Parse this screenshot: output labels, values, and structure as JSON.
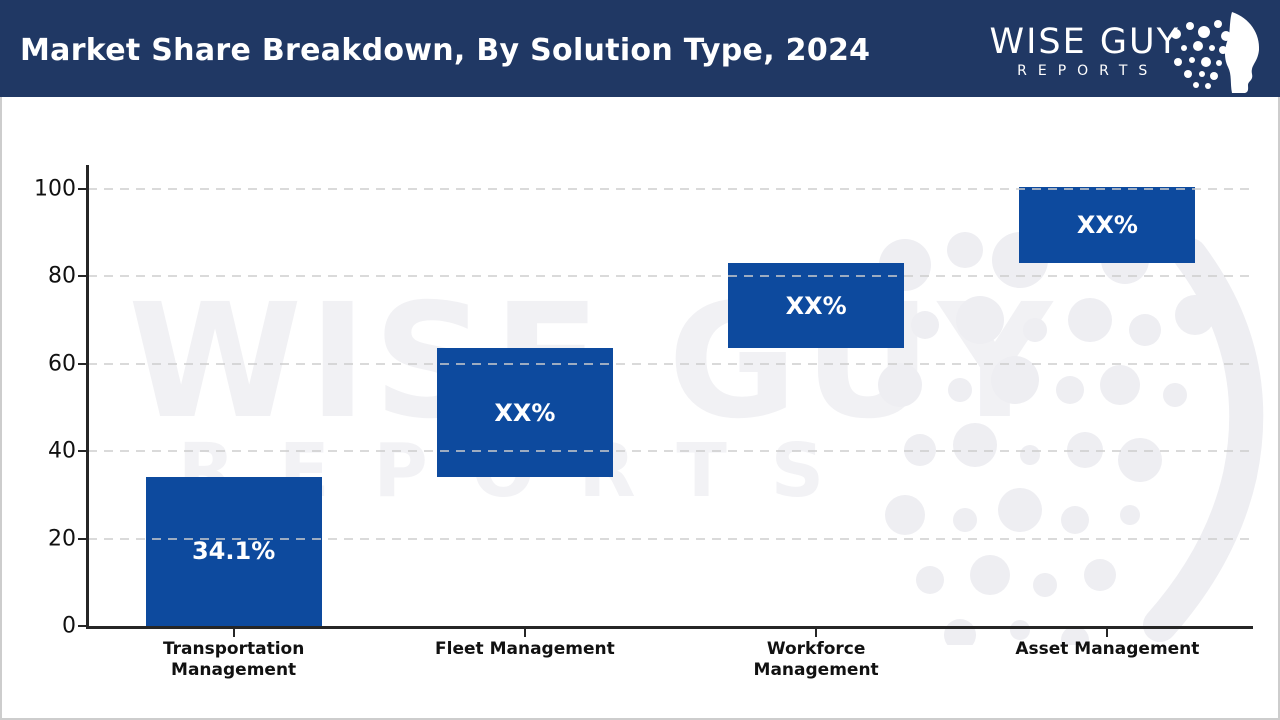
{
  "header": {
    "title": "Market Share Breakdown, By Solution Type, 2024",
    "bg_color": "#203864",
    "logo": {
      "line1": "WISE GUY",
      "line2": "REPORTS"
    }
  },
  "watermark": {
    "line1": "WISE GUY",
    "line2": "REPORTS"
  },
  "chart_data": {
    "type": "bar",
    "subtype": "waterfall",
    "title": "Market Share Breakdown, By Solution Type, 2024",
    "xlabel": "",
    "ylabel": "",
    "categories": [
      "Transportation Management",
      "Fleet Management",
      "Workforce Management",
      "Asset Management"
    ],
    "category_lines": [
      [
        "Transportation",
        "Management"
      ],
      [
        "Fleet Management"
      ],
      [
        "Workforce",
        "Management"
      ],
      [
        "Asset Management"
      ]
    ],
    "segments": [
      {
        "start": 0,
        "end": 34.1,
        "label": "34.1%"
      },
      {
        "start": 34.1,
        "end": 63.5,
        "label": "XX%"
      },
      {
        "start": 63.5,
        "end": 83.0,
        "label": "XX%"
      },
      {
        "start": 83.0,
        "end": 100.3,
        "label": "XX%"
      }
    ],
    "yticks": [
      0,
      20,
      40,
      60,
      80,
      100
    ],
    "ylim": [
      0,
      105
    ],
    "grid": true,
    "grid_style": "dashed",
    "legend": false,
    "bar_color": "#0d4a9e",
    "bar_label_color": "#ffffff",
    "axis_color": "#262626"
  }
}
